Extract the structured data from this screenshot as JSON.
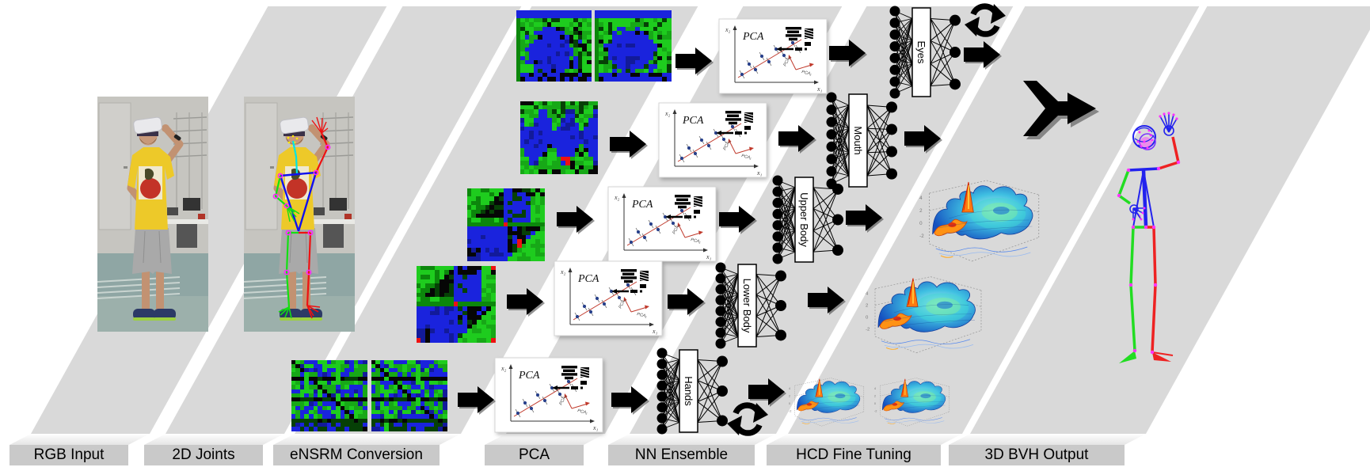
{
  "figure": {
    "kind": "processing-pipeline",
    "stages": [
      {
        "label": "RGB Input"
      },
      {
        "label": "2D Joints"
      },
      {
        "label": "eNSRM Conversion"
      },
      {
        "label": "PCA"
      },
      {
        "label": "NN Ensemble"
      },
      {
        "label": "HCD Fine Tuning"
      },
      {
        "label": "3D BVH Output"
      }
    ]
  },
  "pca": {
    "title": "PCA",
    "xlabel": "x₁",
    "ylabel": "x₂",
    "axis1": "PCA₁",
    "axis2": "PCA₂"
  },
  "nn_ensemble": {
    "networks": [
      {
        "label": "Eyes",
        "inputs": 8,
        "outputs": 3,
        "cycle": "top-right"
      },
      {
        "label": "Mouth",
        "inputs": 8,
        "outputs": 4,
        "cycle": null
      },
      {
        "label": "Upper Body",
        "inputs": 8,
        "outputs": 3,
        "cycle": null
      },
      {
        "label": "Lower Body",
        "inputs": 8,
        "outputs": 3,
        "cycle": null
      },
      {
        "label": "Hands",
        "inputs": 8,
        "outputs": 3,
        "cycle": "bottom-right"
      }
    ]
  },
  "hcd": {
    "surface_count": 4,
    "left_ticks": [
      "4",
      "2",
      "0",
      "-2"
    ]
  },
  "matrices": {
    "count": 7,
    "palette": {
      "blue": "#1a23dd",
      "green": "#1ecc1e",
      "dark_green": "#0a7a0a",
      "black": "#060606",
      "red": "#ee1111"
    }
  },
  "icons": {
    "flow_arrow": "right-arrow",
    "cycle": "refresh-cycle",
    "merge": "y-merge-arrow"
  },
  "colors": {
    "panel_top": "#d9d9d9",
    "panel_front": "#c9c9c9",
    "arrow": "#000000",
    "skeleton_blue": "#2222ee",
    "skeleton_green": "#22dd22",
    "skeleton_red": "#ee2222",
    "skeleton_magenta": "#ff33ff"
  }
}
